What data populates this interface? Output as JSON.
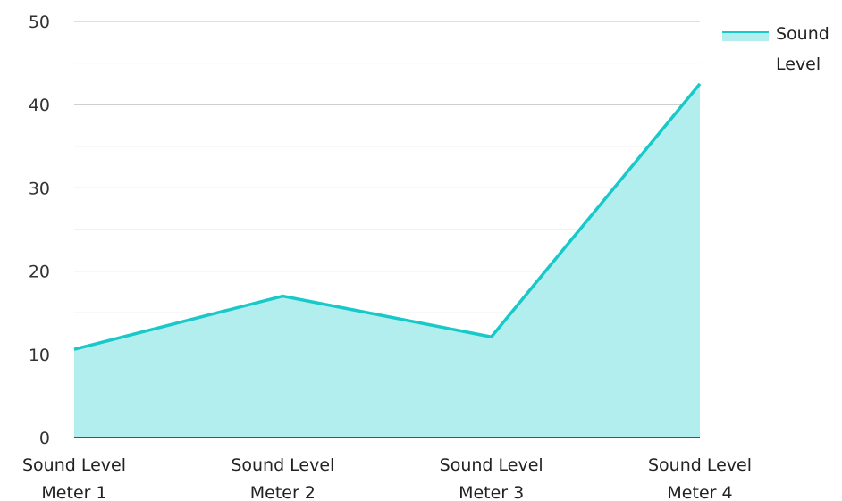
{
  "chart_data": {
    "type": "area",
    "categories": [
      "Sound Level Meter 1",
      "Sound Level Meter 2",
      "Sound Level Meter 3",
      "Sound Level Meter 4"
    ],
    "category_lines": [
      [
        "Sound Level",
        "Meter 1"
      ],
      [
        "Sound Level",
        "Meter 2"
      ],
      [
        "Sound Level",
        "Meter 3"
      ],
      [
        "Sound Level",
        "Meter 4"
      ]
    ],
    "series": [
      {
        "name": "Sound Level",
        "values": [
          10.6,
          17.0,
          12.1,
          42.5
        ],
        "color": "#19c9c9",
        "fill": "#b2eeee"
      }
    ],
    "legend_lines": [
      "Sound",
      "Level"
    ],
    "title": "",
    "xlabel": "",
    "ylabel": "",
    "ylim": [
      0,
      50
    ],
    "yticks": [
      0,
      10,
      20,
      30,
      40,
      50
    ],
    "ytick_labels": [
      "0",
      "10",
      "20",
      "30",
      "40",
      "50"
    ],
    "grid": true,
    "legend_position": "top-right"
  }
}
